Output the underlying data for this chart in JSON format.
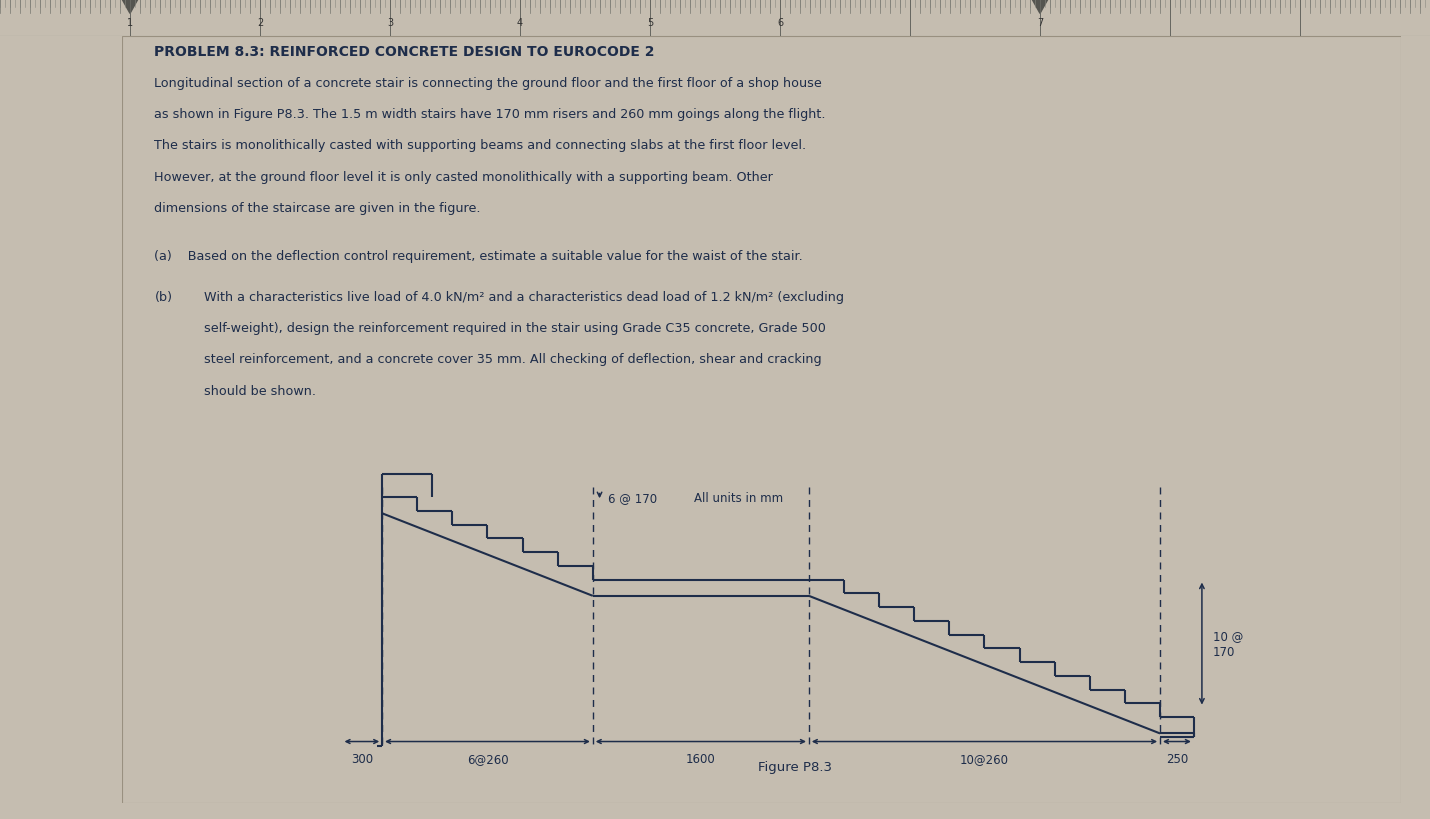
{
  "title": "PROBLEM 8.3: REINFORCED CONCRETE DESIGN TO EUROCODE 2",
  "para1": "Longitudinal section of a concrete stair is connecting the ground floor and the first floor of a shop house",
  "para2": "as shown in Figure P8.3. The 1.5 m width stairs have 170 mm risers and 260 mm goings along the flight.",
  "para3": "The stairs is monolithically casted with supporting beams and connecting slabs at the first floor level.",
  "para4": "However, at the ground floor level it is only casted monolithically with a supporting beam. Other",
  "para5": "dimensions of the staircase are given in the figure.",
  "part_a": "(a)    Based on the deflection control requirement, estimate a suitable value for the waist of the stair.",
  "part_b_label": "(b)",
  "part_b_1": "With a characteristics live load of 4.0 kN/m² and a characteristics dead load of 1.2 kN/m² (excluding",
  "part_b_2": "self-weight), design the reinforcement required in the stair using Grade C35 concrete, Grade 500",
  "part_b_3": "steel reinforcement, and a concrete cover 35 mm. All checking of deflection, shear and cracking",
  "part_b_4": "should be shown.",
  "figure_label": "Figure P8.3",
  "ann_top_arrow": "6 @ 170",
  "ann_units": "All units in mm",
  "ann_right": "10 @\n170",
  "dim_300": "300",
  "dim_6at260": "6@260",
  "dim_1600": "1600",
  "dim_10at260": "10@260",
  "dim_250": "250",
  "bg_color": "#c5bdb0",
  "text_color": "#1e2d4a",
  "line_color": "#1e2d4a",
  "ruler_bg": "#c8c2b5",
  "border_color": "#999080"
}
